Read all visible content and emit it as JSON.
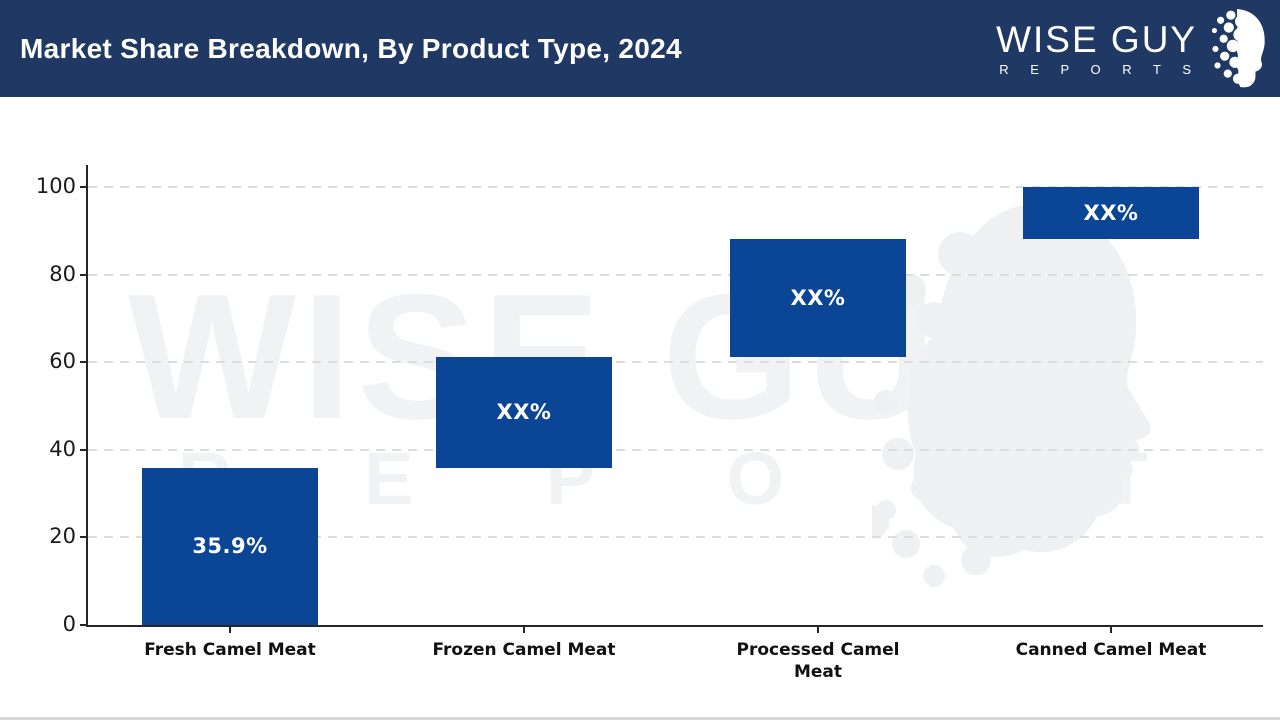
{
  "header": {
    "title": "Market Share Breakdown, By Product Type, 2024",
    "bg_color": "#1f3864",
    "logo": {
      "line1": "WISE GUY",
      "line2": "R E P O R T S"
    }
  },
  "watermark": {
    "line1": "WISE GUY",
    "line2": "REPORTS"
  },
  "chart_data": {
    "type": "bar",
    "subtype": "waterfall",
    "title": "Market Share Breakdown, By Product Type, 2024",
    "xlabel": "",
    "ylabel": "",
    "ylim": [
      0,
      100
    ],
    "yticks": [
      0,
      20,
      40,
      60,
      80,
      100
    ],
    "grid": "horizontal-dashed",
    "legend": "none",
    "bar_color": "#0b4596",
    "bar_label_color": "#ffffff",
    "categories": [
      "Fresh Camel Meat",
      "Frozen Camel Meat",
      "Processed Camel\nMeat",
      "Canned Camel Meat"
    ],
    "segments": [
      {
        "category": "Fresh Camel Meat",
        "start": 0,
        "end": 35.9,
        "label": "35.9%"
      },
      {
        "category": "Frozen Camel Meat",
        "start": 35.9,
        "end": 61.2,
        "label": "XX%"
      },
      {
        "category": "Processed Camel Meat",
        "start": 61.2,
        "end": 88.1,
        "label": "XX%"
      },
      {
        "category": "Canned Camel Meat",
        "start": 88.1,
        "end": 100,
        "label": "XX%"
      }
    ]
  }
}
